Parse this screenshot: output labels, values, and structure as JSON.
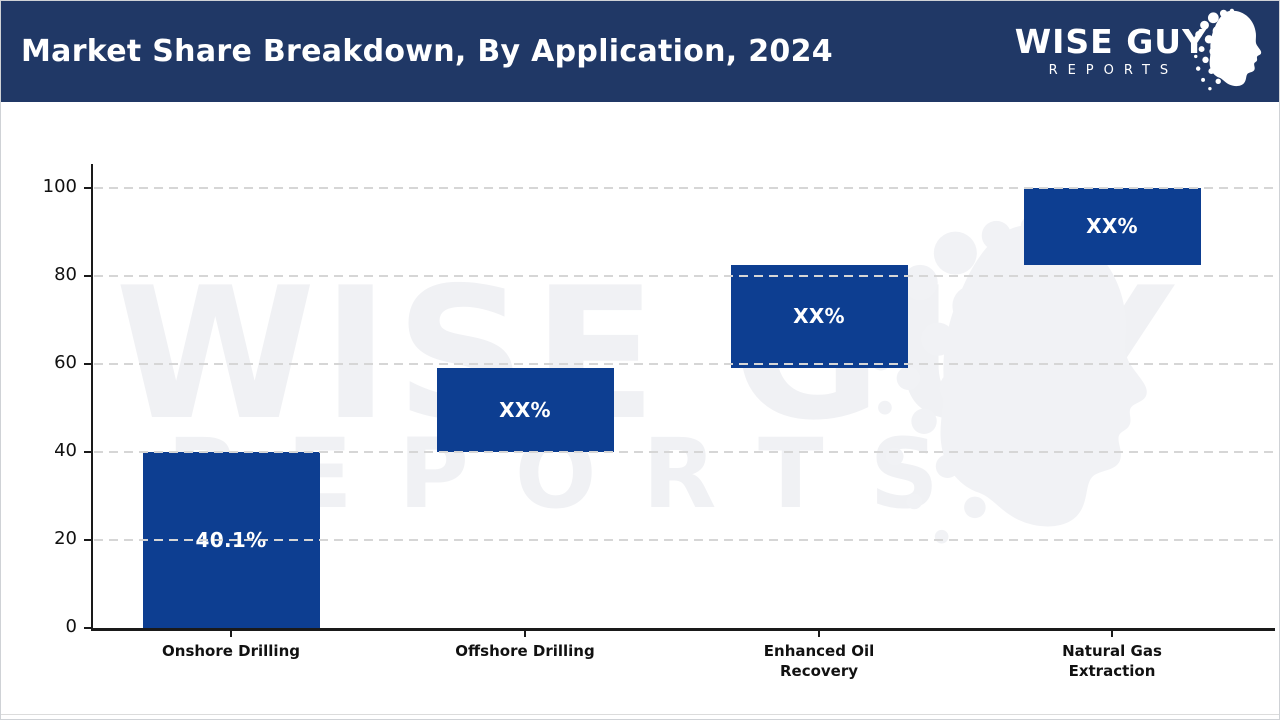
{
  "header": {
    "title": "Market Share Breakdown, By Application, 2024",
    "logo": {
      "line1": "WISE GUY",
      "line2": "REPORTS"
    }
  },
  "watermark": {
    "line1": "WISE GUY",
    "line2": "REPORTS"
  },
  "colors": {
    "header_bg": "#203866",
    "bar": "#0d3e91",
    "grid": "#d6d6d6",
    "axis": "#1a1a1a",
    "bar_label": "#ffffff",
    "watermark": "#f0f1f4"
  },
  "chart_data": {
    "type": "bar",
    "subtype": "waterfall",
    "title": "Market Share Breakdown, By Application, 2024",
    "xlabel": "",
    "ylabel": "",
    "ylim": [
      0,
      105
    ],
    "yticks": [
      0,
      20,
      40,
      60,
      80,
      100
    ],
    "grid": "horizontal dashed, drawn above bars",
    "legend": "none",
    "bar_color": "#0d3e91",
    "categories": [
      "Onshore Drilling",
      "Offshore Drilling",
      "Enhanced Oil Recovery",
      "Natural Gas Extraction"
    ],
    "bars": [
      {
        "category": "Onshore Drilling",
        "category_lines": [
          "Onshore Drilling"
        ],
        "start": 0,
        "end": 40.1,
        "segment_value": 40.1,
        "label": "40.1%"
      },
      {
        "category": "Offshore Drilling",
        "category_lines": [
          "Offshore Drilling"
        ],
        "start": 40.1,
        "end": 59.2,
        "segment_value": 19.1,
        "label": "XX%"
      },
      {
        "category": "Enhanced Oil Recovery",
        "category_lines": [
          "Enhanced Oil",
          "Recovery"
        ],
        "start": 59.2,
        "end": 82.6,
        "segment_value": 23.4,
        "label": "XX%"
      },
      {
        "category": "Natural Gas Extraction",
        "category_lines": [
          "Natural Gas",
          "Extraction"
        ],
        "start": 82.6,
        "end": 100,
        "segment_value": 17.4,
        "label": "XX%"
      }
    ]
  }
}
